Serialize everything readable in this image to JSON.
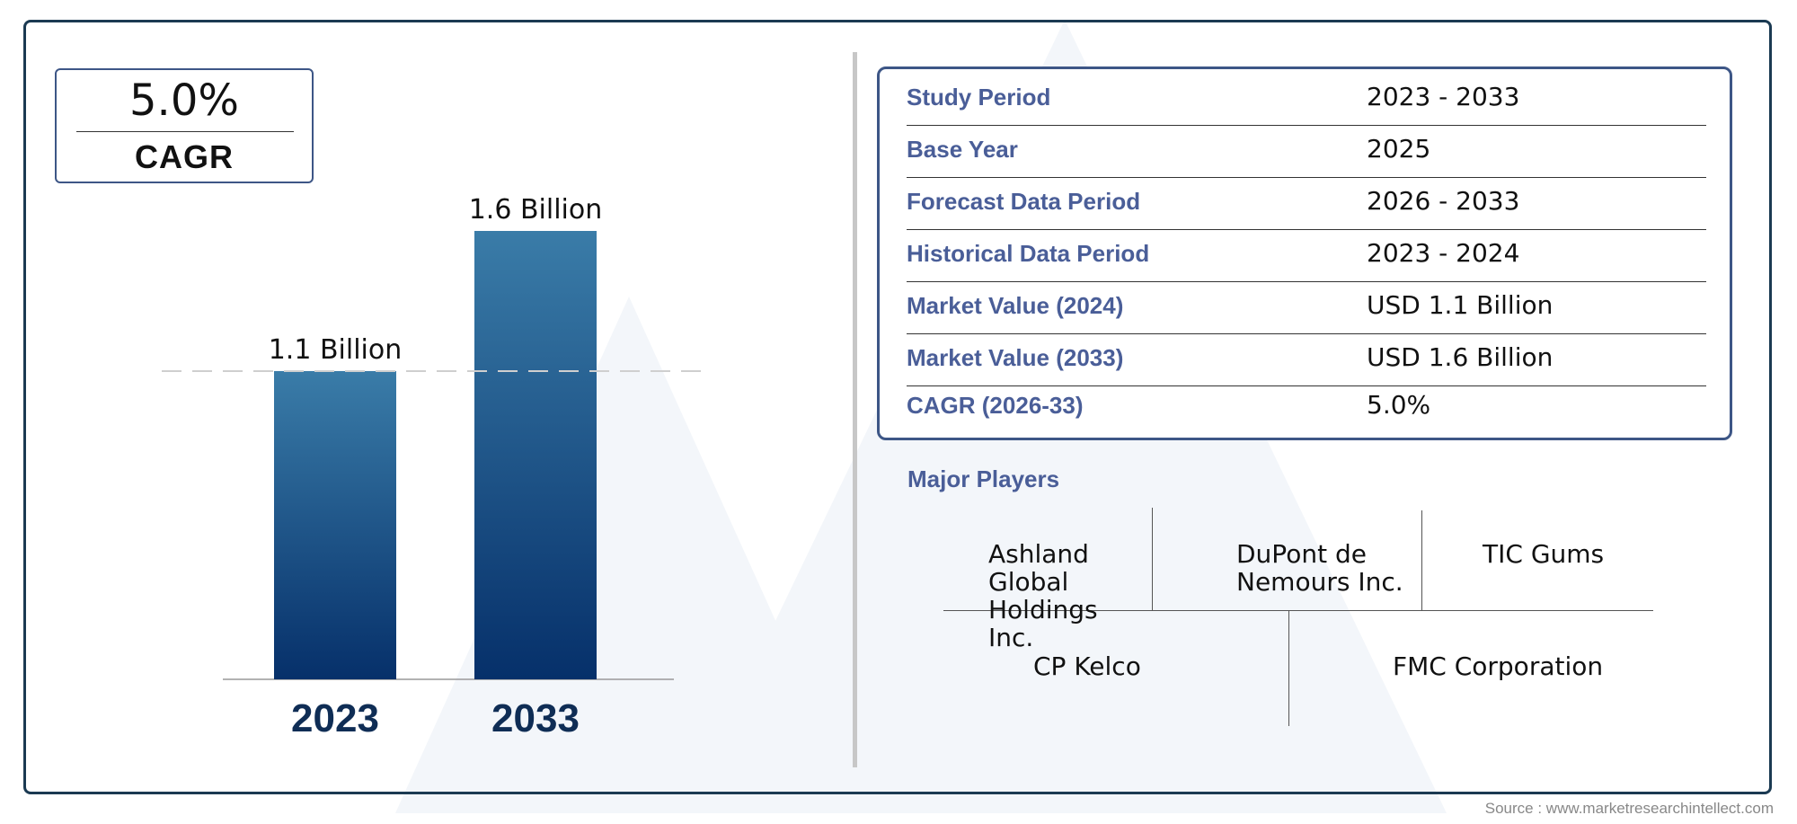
{
  "cagr": {
    "value": "5.0%",
    "label": "CAGR"
  },
  "chart_data": {
    "type": "bar",
    "categories": [
      "2023",
      "2033"
    ],
    "values": [
      1.1,
      1.6
    ],
    "data_labels": [
      "1.1 Billion",
      "1.6 Billion"
    ],
    "title": "",
    "xlabel": "",
    "ylabel": "",
    "ylim": [
      0,
      1.6
    ],
    "grid": false,
    "reference_line": 1.1,
    "colors": {
      "bar_top": "#3a7ca8",
      "bar_bottom": "#06306a",
      "category_text": "#0f2d55"
    }
  },
  "info_table": {
    "rows": [
      {
        "label": "Study Period",
        "value": "2023 - 2033"
      },
      {
        "label": "Base Year",
        "value": "2025"
      },
      {
        "label": "Forecast Data Period",
        "value": "2026 - 2033"
      },
      {
        "label": "Historical Data Period",
        "value": "2023 - 2024"
      },
      {
        "label": "Market Value (2024)",
        "value": "USD 1.1 Billion"
      },
      {
        "label": "Market Value (2033)",
        "value": "USD 1.6 Billion"
      },
      {
        "label": "CAGR (2026-33)",
        "value": "5.0%"
      }
    ]
  },
  "players": {
    "title": "Major Players",
    "row1": [
      "Ashland Global Holdings Inc.",
      "DuPont de Nemours Inc.",
      "TIC Gums"
    ],
    "row2": [
      "CP Kelco",
      "FMC Corporation"
    ]
  },
  "source": "Source : www.marketresearchintellect.com",
  "colors": {
    "frame": "#1b3a52",
    "accent": "#4a5e98",
    "box_border": "#3d5686"
  }
}
